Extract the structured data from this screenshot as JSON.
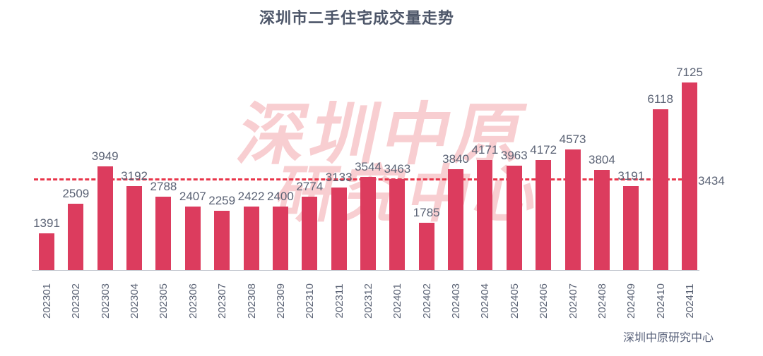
{
  "title": "深圳市二手住宅成交量走势",
  "watermark": {
    "line1": "深圳中原",
    "line2": "研究中心"
  },
  "credit": "深圳中原研究中心",
  "colors": {
    "bar": "#dc3c5e",
    "avg_line": "#e8354a",
    "value_label": "#5b6375",
    "title": "#4d5669",
    "watermark": "rgba(226,60,70,0.25)",
    "axis_line": "#bcc1c9"
  },
  "chart_data": {
    "type": "bar",
    "title": "深圳市二手住宅成交量走势",
    "categories": [
      "202301",
      "202302",
      "202303",
      "202304",
      "202305",
      "202306",
      "202307",
      "202308",
      "202309",
      "202310",
      "202311",
      "202312",
      "202401",
      "202402",
      "202403",
      "202404",
      "202405",
      "202406",
      "202407",
      "202408",
      "202409",
      "202410",
      "202411"
    ],
    "values": [
      1391,
      2509,
      3949,
      3192,
      2788,
      2407,
      2259,
      2422,
      2400,
      2774,
      3133,
      3544,
      3463,
      1785,
      3840,
      4171,
      3963,
      4172,
      4573,
      3804,
      3191,
      6118,
      7125
    ],
    "average_line": {
      "value": 3434,
      "label": "3434",
      "style": "dashed"
    },
    "xlabel": "",
    "ylabel": "",
    "ylim": [
      0,
      7500
    ],
    "grid": false,
    "legend": "none",
    "value_labels": true,
    "x_tick_rotation": -90,
    "source_note": "深圳中原研究中心"
  }
}
